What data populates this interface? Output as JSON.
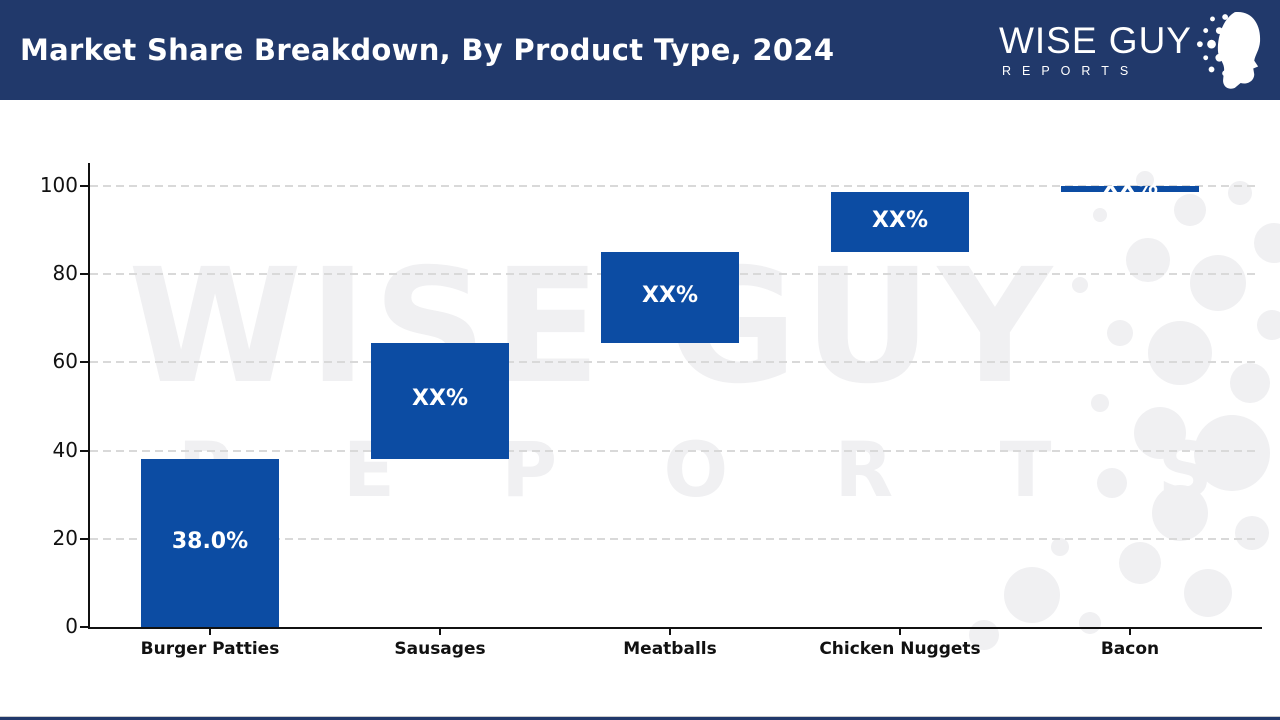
{
  "header": {
    "title": "Market Share Breakdown, By Product Type, 2024",
    "logo": {
      "line1": "WISE GUY",
      "line2": "REPORTS"
    }
  },
  "watermark": {
    "line1": "WISE GUY",
    "line2": "R E P O R T S"
  },
  "colors": {
    "header_navy": "#21396b",
    "bar_blue": "#0c4ca3",
    "grid_gray": "#d9d9d9",
    "watermark_gray": "#f0f0f2",
    "axis_black": "#111111"
  },
  "chart_data": {
    "type": "bar",
    "subtype": "waterfall",
    "title": "Market Share Breakdown, By Product Type, 2024",
    "categories": [
      "Burger Patties",
      "Sausages",
      "Meatballs",
      "Chicken Nuggets",
      "Bacon"
    ],
    "segments": [
      {
        "category": "Burger Patties",
        "from": 0,
        "to": 38,
        "label": "38.0%"
      },
      {
        "category": "Sausages",
        "from": 38,
        "to": 64.5,
        "label": "XX%"
      },
      {
        "category": "Meatballs",
        "from": 64.5,
        "to": 85,
        "label": "XX%"
      },
      {
        "category": "Chicken Nuggets",
        "from": 85,
        "to": 98.6,
        "label": "XX%"
      },
      {
        "category": "Bacon",
        "from": 98.6,
        "to": 100,
        "label": "XX%"
      }
    ],
    "yticks": [
      0,
      20,
      40,
      60,
      80,
      100
    ],
    "ylim": [
      0,
      105
    ],
    "xlabel": "",
    "ylabel": "",
    "legend": false,
    "grid": {
      "axis": "y",
      "style": "dashed",
      "color": "#d9d9d9"
    },
    "bar_color": "#0c4ca3",
    "bar_label_color": "#ffffff"
  }
}
